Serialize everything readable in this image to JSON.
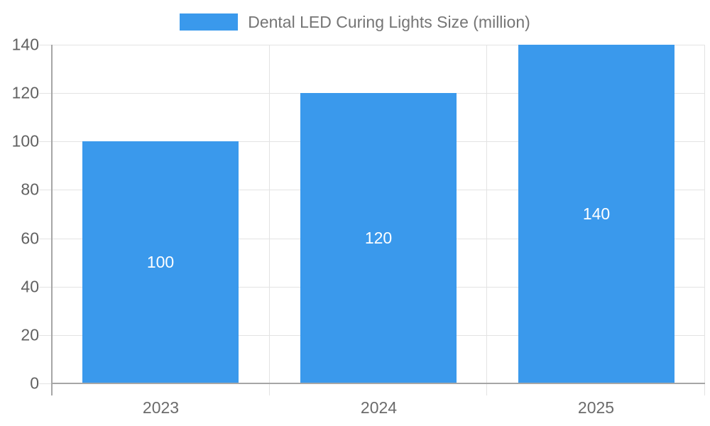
{
  "legend": {
    "label": "Dental LED Curing Lights Size (million)"
  },
  "chart_data": {
    "type": "bar",
    "title": "Dental LED Curing Lights Size (million)",
    "categories": [
      "2023",
      "2024",
      "2025"
    ],
    "values": [
      100,
      120,
      140
    ],
    "series": [
      {
        "name": "Dental LED Curing Lights Size (million)",
        "values": [
          100,
          120,
          140
        ]
      }
    ],
    "xlabel": "",
    "ylabel": "",
    "ylim": [
      0,
      140
    ],
    "yticks": [
      0,
      20,
      40,
      60,
      80,
      100,
      120,
      140
    ],
    "grid": true,
    "legend_position": "top-center",
    "bar_value_labels_inside": true,
    "colors": {
      "bar": "#3a99ec",
      "grid": "#e3e3e3",
      "axis": "#a6a6a6",
      "ytick_text": "#616161",
      "xtick_text": "#6b6b6b",
      "legend_text": "#757575",
      "value_text": "#ffffff"
    }
  }
}
